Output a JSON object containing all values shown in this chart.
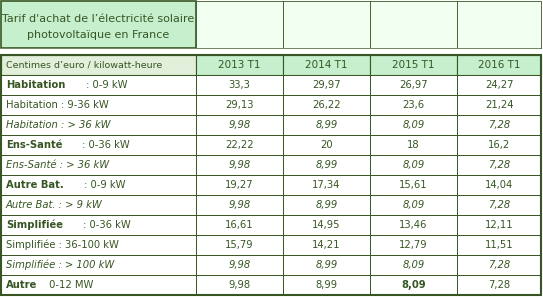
{
  "title_line1": "Tarif d'achat de l’électricité solaire",
  "title_line2": "photovoltaïque en France",
  "header_col": "Centimes d’euro / kilowatt-heure",
  "columns": [
    "2013 T1",
    "2014 T1",
    "2015 T1",
    "2016 T1"
  ],
  "rows": [
    {
      "label_parts": [
        [
          "Habitation",
          "bold"
        ],
        [
          " : 0-9 kW",
          "normal"
        ]
      ],
      "values": [
        "33,3",
        "29,97",
        "26,97",
        "24,27"
      ],
      "bold_vals": [
        false,
        false,
        false,
        false
      ]
    },
    {
      "label_parts": [
        [
          "Habitation : 9-36 kW",
          "normal"
        ]
      ],
      "values": [
        "29,13",
        "26,22",
        "23,6",
        "21,24"
      ],
      "bold_vals": [
        false,
        false,
        false,
        false
      ]
    },
    {
      "label_parts": [
        [
          "Habitation : > 36 kW",
          "italic"
        ]
      ],
      "values": [
        "9,98",
        "8,99",
        "8,09",
        "7,28"
      ],
      "bold_vals": [
        false,
        false,
        false,
        false
      ]
    },
    {
      "label_parts": [
        [
          "Ens-Santé",
          "bold"
        ],
        [
          " : 0-36 kW",
          "normal"
        ]
      ],
      "values": [
        "22,22",
        "20",
        "18",
        "16,2"
      ],
      "bold_vals": [
        false,
        false,
        false,
        false
      ]
    },
    {
      "label_parts": [
        [
          "Ens-Santé : > 36 kW",
          "italic"
        ]
      ],
      "values": [
        "9,98",
        "8,99",
        "8,09",
        "7,28"
      ],
      "bold_vals": [
        false,
        false,
        false,
        false
      ]
    },
    {
      "label_parts": [
        [
          "Autre Bat.",
          "bold"
        ],
        [
          " : 0-9 kW",
          "normal"
        ]
      ],
      "values": [
        "19,27",
        "17,34",
        "15,61",
        "14,04"
      ],
      "bold_vals": [
        false,
        false,
        false,
        false
      ]
    },
    {
      "label_parts": [
        [
          "Autre Bat. : > 9 kW",
          "italic"
        ]
      ],
      "values": [
        "9,98",
        "8,99",
        "8,09",
        "7,28"
      ],
      "bold_vals": [
        false,
        false,
        false,
        false
      ]
    },
    {
      "label_parts": [
        [
          "Simplifiée",
          "bold"
        ],
        [
          " : 0-36 kW",
          "normal"
        ]
      ],
      "values": [
        "16,61",
        "14,95",
        "13,46",
        "12,11"
      ],
      "bold_vals": [
        false,
        false,
        false,
        false
      ]
    },
    {
      "label_parts": [
        [
          "Simplifiée : 36-100 kW",
          "normal"
        ]
      ],
      "values": [
        "15,79",
        "14,21",
        "12,79",
        "11,51"
      ],
      "bold_vals": [
        false,
        false,
        false,
        false
      ]
    },
    {
      "label_parts": [
        [
          "Simplifiée : > 100 kW",
          "italic"
        ]
      ],
      "values": [
        "9,98",
        "8,99",
        "8,09",
        "7,28"
      ],
      "bold_vals": [
        false,
        false,
        false,
        false
      ]
    },
    {
      "label_parts": [
        [
          "Autre",
          "bold"
        ],
        [
          " 0-12 MW",
          "normal"
        ]
      ],
      "values": [
        "9,98",
        "8,99",
        "8,09",
        "7,28"
      ],
      "bold_vals": [
        false,
        false,
        true,
        false
      ]
    }
  ],
  "title_bg": "#c6efce",
  "title_text_color": "#375623",
  "col_header_bg": "#c6efce",
  "col_header_text_color": "#375623",
  "header_bg": "#e2efda",
  "cell_text_color": "#375623",
  "border_color": "#375623",
  "fig_w": 5.43,
  "fig_h": 2.98,
  "dpi": 100
}
